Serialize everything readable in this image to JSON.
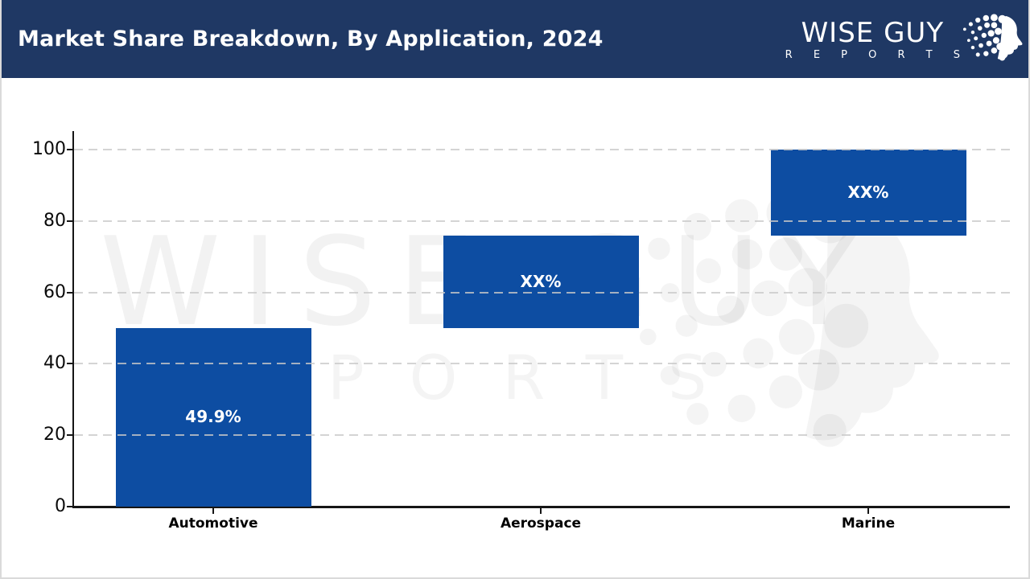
{
  "header": {
    "title": "Market Share Breakdown, By Application, 2024",
    "logo": {
      "line1": "WISE GUY",
      "line2": "R E P O R T S"
    }
  },
  "watermark": {
    "line1": "WISE GUY",
    "line2": "REPORTS"
  },
  "colors": {
    "header_bg": "#1f3864",
    "bar_blue": "#0d4da2",
    "axis": "#151515",
    "grid": "rgba(201,201,201,0.8)"
  },
  "chart_data": {
    "type": "bar",
    "subtype": "waterfall",
    "title": "Market Share Breakdown, By Application, 2024",
    "categories": [
      "Automotive",
      "Aerospace",
      "Marine"
    ],
    "bars": [
      {
        "category": "Automotive",
        "label": "49.9%",
        "start": 0,
        "end": 49.9
      },
      {
        "category": "Aerospace",
        "label": "XX%",
        "start": 49.9,
        "end": 75.8
      },
      {
        "category": "Marine",
        "label": "XX%",
        "start": 75.8,
        "end": 100
      }
    ],
    "yticks": [
      0,
      20,
      40,
      60,
      80,
      100
    ],
    "ylim": [
      0,
      105
    ],
    "xlabel": "",
    "ylabel": "",
    "grid": "horizontal-dashed-over-bars",
    "legend": "none"
  }
}
